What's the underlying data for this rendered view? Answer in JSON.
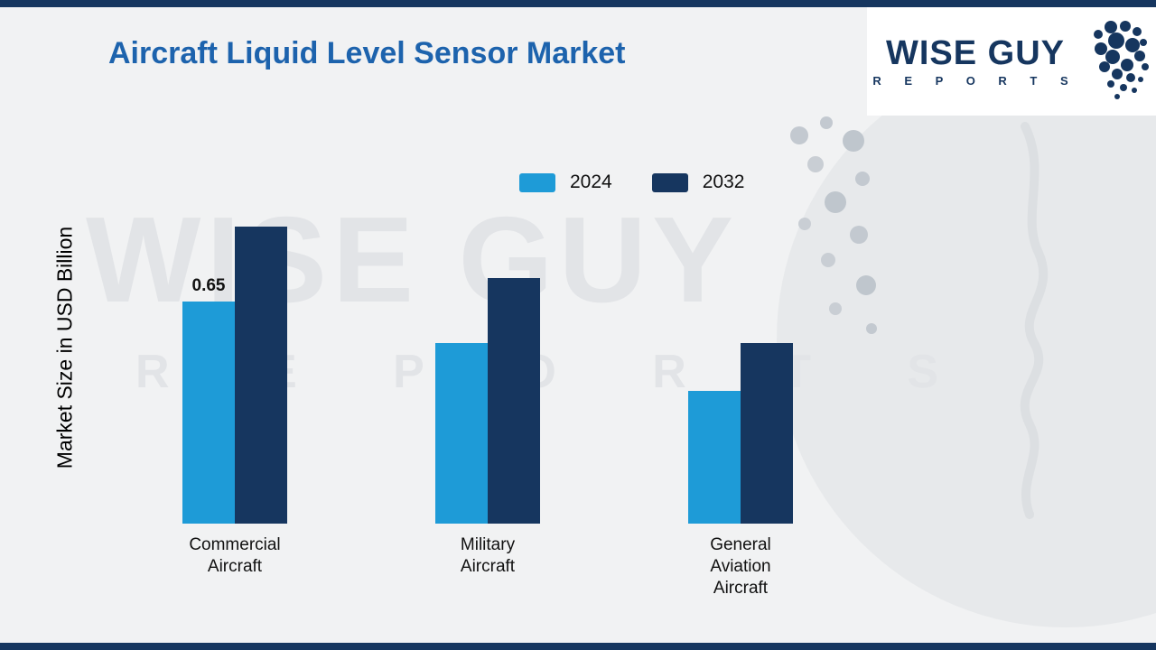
{
  "page": {
    "title": "Aircraft Liquid Level Sensor Market"
  },
  "logo": {
    "line1": "WISE GUY",
    "line2": "R E P O R T S"
  },
  "watermark": {
    "line1": "WISE GUY",
    "line2": "R E P O R T S"
  },
  "colors": {
    "title_blue": "#1d63ad",
    "series_2024": "#1e9bd7",
    "series_2032": "#16365f",
    "strip_navy": "#16365f"
  },
  "chart_data": {
    "type": "bar",
    "title": "Aircraft Liquid Level Sensor Market",
    "xlabel": "",
    "ylabel": "Market Size in USD Billion",
    "ylim": [
      0,
      0.9
    ],
    "grid": false,
    "legend_position": "top",
    "categories": [
      "Commercial\nAircraft",
      "Military\nAircraft",
      "General\nAviation\nAircraft"
    ],
    "series": [
      {
        "name": "2024",
        "color": "#1e9bd7",
        "values": [
          0.65,
          0.53,
          0.39
        ]
      },
      {
        "name": "2032",
        "color": "#16365f",
        "values": [
          0.87,
          0.72,
          0.53
        ]
      }
    ],
    "annotations": [
      {
        "series": "2024",
        "category_index": 0,
        "series_index": 0,
        "text": "0.65",
        "value": 0.65
      }
    ]
  }
}
